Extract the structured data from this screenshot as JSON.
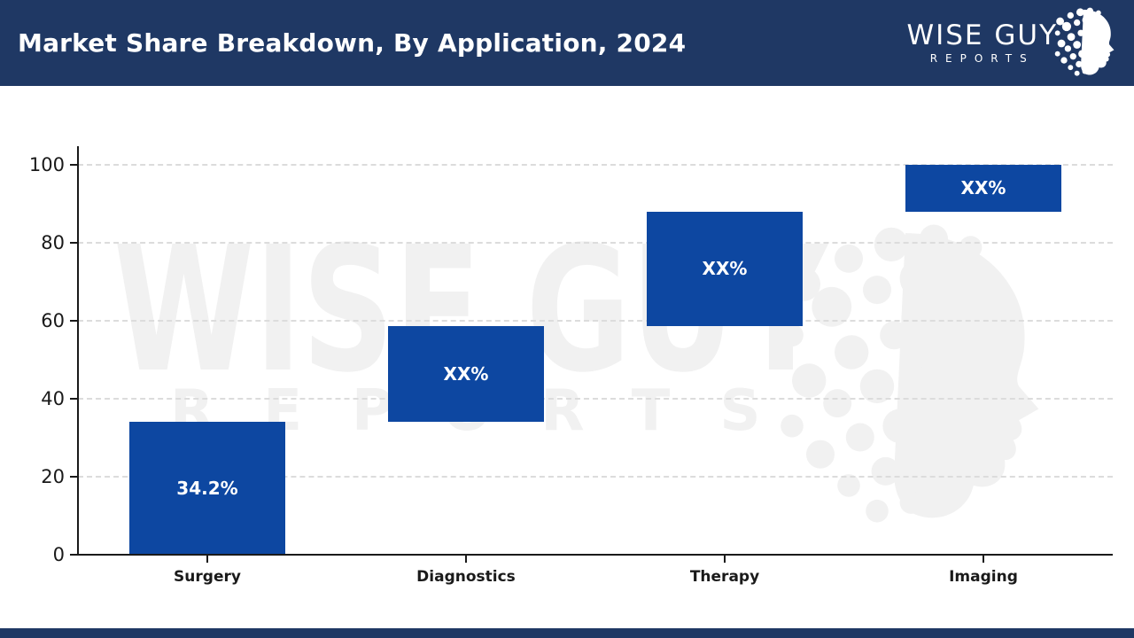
{
  "header": {
    "title": "Market Share Breakdown, By Application, 2024",
    "logo": {
      "wise_guy": "WISE GUY",
      "reports": "REPORTS"
    }
  },
  "watermark": {
    "wise_guy": "WISE GUY",
    "reports": "REPORTS"
  },
  "chart_data": {
    "type": "bar",
    "subtype": "waterfall",
    "title": "Market Share Breakdown, By Application, 2024",
    "categories": [
      "Surgery",
      "Diagnostics",
      "Therapy",
      "Imaging"
    ],
    "segments": [
      {
        "category": "Surgery",
        "start": 0,
        "end": 34.2,
        "label": "34.2%"
      },
      {
        "category": "Diagnostics",
        "start": 34.2,
        "end": 58.6,
        "label": "XX%"
      },
      {
        "category": "Therapy",
        "start": 58.6,
        "end": 88.0,
        "label": "XX%"
      },
      {
        "category": "Imaging",
        "start": 88.0,
        "end": 100,
        "label": "XX%"
      }
    ],
    "yticks": [
      0,
      20,
      40,
      60,
      80,
      100
    ],
    "ylim": [
      0,
      105
    ],
    "xlabel": "",
    "ylabel": "",
    "grid": "horizontal-dashed",
    "legend": "none",
    "bar_color": "#0d47a1",
    "bar_label_color": "#ffffff"
  },
  "colors": {
    "header_bg": "#1f3864",
    "footer_bg": "#1f3864",
    "title_text": "#ffffff",
    "watermark": "#f1f1f1",
    "grid": "#dcdcdc",
    "axis": "#1a1a1a"
  }
}
